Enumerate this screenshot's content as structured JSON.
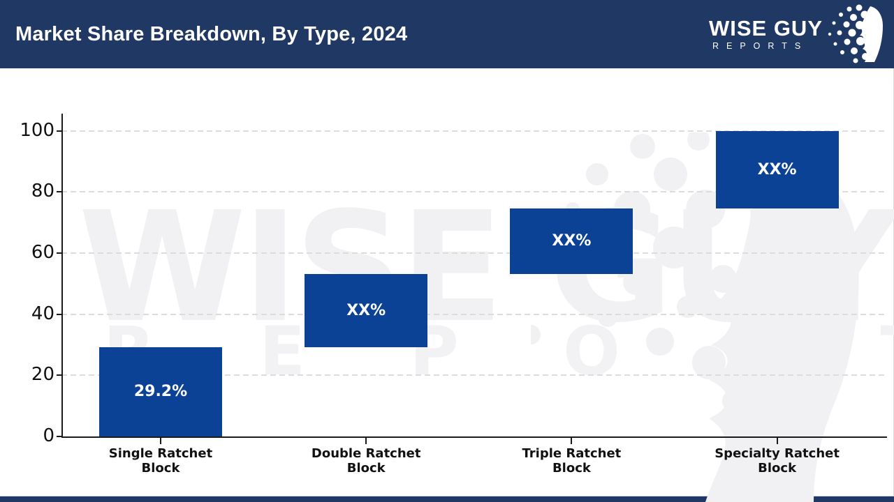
{
  "header": {
    "title": "Market Share Breakdown, By Type, 2024",
    "logo": {
      "line1": "WISE GUY",
      "line2": "REPORTS"
    }
  },
  "watermark": {
    "line1": "WISE GUY",
    "line2": "R E P O R T S"
  },
  "colors": {
    "header_bg": "#1f3864",
    "footer_bg": "#1f3864",
    "bar": "#0b4295",
    "bar_label": "#ffffff",
    "gridline": "#dcdcdc",
    "axis": "#1a1a1a",
    "watermark": "#f1f1f4"
  },
  "chart_data": {
    "type": "bar",
    "subtype": "waterfall",
    "title": "Market Share Breakdown, By Type, 2024",
    "categories": [
      "Single Ratchet\nBlock",
      "Double Ratchet\nBlock",
      "Triple Ratchet\nBlock",
      "Specialty Ratchet\nBlock"
    ],
    "segments": [
      {
        "category": "Single Ratchet Block",
        "start": 0,
        "end": 29.2,
        "label": "29.2%"
      },
      {
        "category": "Double Ratchet Block",
        "start": 29.2,
        "end": 53.2,
        "label": "XX%"
      },
      {
        "category": "Triple Ratchet Block",
        "start": 53.2,
        "end": 74.6,
        "label": "XX%"
      },
      {
        "category": "Specialty Ratchet Block",
        "start": 74.6,
        "end": 100,
        "label": "XX%"
      }
    ],
    "ylim": [
      0,
      100
    ],
    "yticks": [
      0,
      20,
      40,
      60,
      80,
      100
    ],
    "xlabel": "",
    "ylabel": "",
    "grid": "horizontal-dashed",
    "legend": "none",
    "bar_color": "#0b4295",
    "bar_label_color": "#ffffff"
  }
}
